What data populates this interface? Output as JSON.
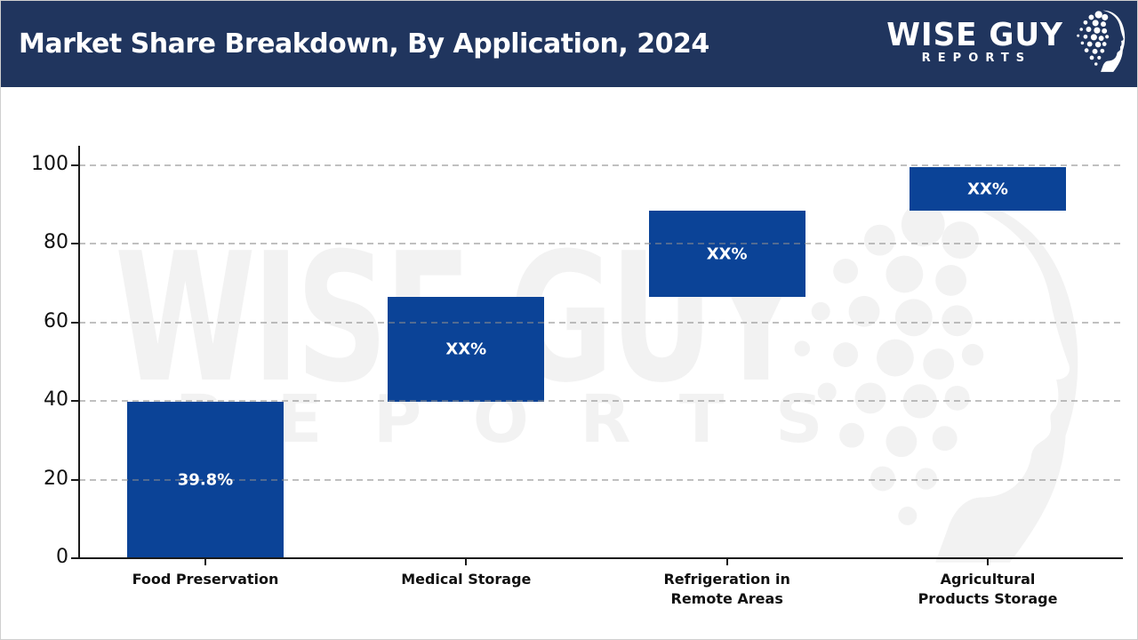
{
  "header": {
    "title": "Market Share Breakdown, By Application, 2024",
    "logo": {
      "line1": "WISE GUY",
      "line2": "REPORTS"
    }
  },
  "watermark": {
    "line1": "WISE GUY",
    "line2": "REPORTS"
  },
  "chart_data": {
    "type": "bar",
    "subtype": "waterfall-floating-bars",
    "title": "Market Share Breakdown, By Application, 2024",
    "categories": [
      "Food Preservation",
      "Medical Storage",
      "Refrigeration in\nRemote Areas",
      "Agricultural\nProducts Storage"
    ],
    "series": [
      {
        "name": "Market Share %",
        "segments": [
          [
            0,
            39.8
          ],
          [
            39.8,
            66.5
          ],
          [
            66.5,
            88.4
          ],
          [
            88.4,
            99.5
          ]
        ],
        "segment_values_est": [
          39.8,
          26.7,
          21.9,
          11.1
        ]
      }
    ],
    "bar_labels": [
      "39.8%",
      "XX%",
      "XX%",
      "XX%"
    ],
    "yticks": [
      0,
      20,
      40,
      60,
      80,
      100
    ],
    "yticklabels": [
      "0",
      "20",
      "40",
      "60",
      "80",
      "100"
    ],
    "ylim": [
      0,
      105
    ],
    "xlabel": "",
    "ylabel": "",
    "grid": "dashed-horizontal-over-bars",
    "legend": "none",
    "bar_color": "#0B4397",
    "bar_label_color": "#ffffff"
  },
  "colors": {
    "header_bg": "#20355E",
    "header_text": "#ffffff",
    "bar_fill": "#0B4397",
    "watermark": "#F2F2F2",
    "gridline": "#c8c8c8",
    "axis": "#1a1a1a",
    "frame_border": "#cfcfcf"
  }
}
